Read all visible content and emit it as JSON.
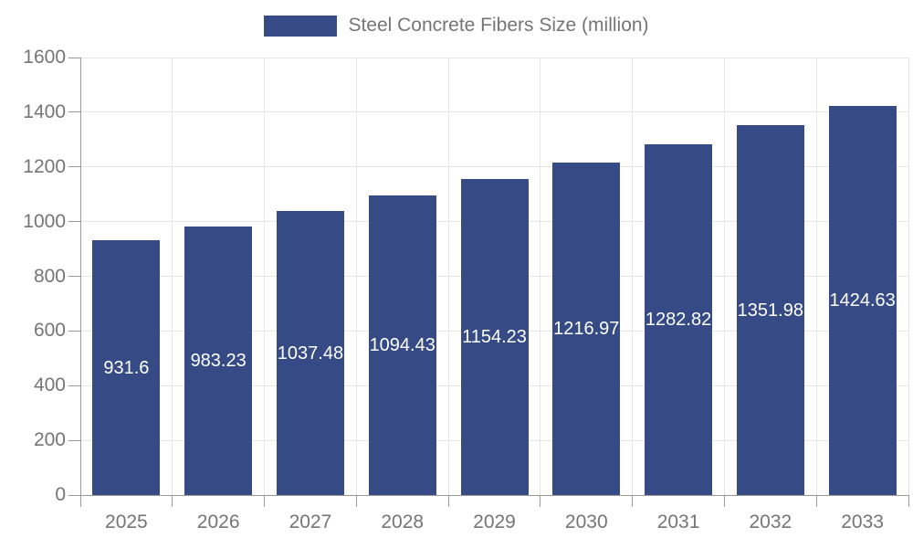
{
  "legend": {
    "label": "Steel Concrete Fibers Size (million)"
  },
  "chart_data": {
    "type": "bar",
    "title": "Steel Concrete Fibers Size (million)",
    "xlabel": "",
    "ylabel": "",
    "categories": [
      "2025",
      "2026",
      "2027",
      "2028",
      "2029",
      "2030",
      "2031",
      "2032",
      "2033"
    ],
    "values": [
      931.6,
      983.23,
      1037.48,
      1094.43,
      1154.23,
      1216.97,
      1282.82,
      1351.98,
      1424.63
    ],
    "data_labels": [
      "931.6",
      "983.23",
      "1037.48",
      "1094.43",
      "1154.23",
      "1216.97",
      "1282.82",
      "1351.98",
      "1424.63"
    ],
    "ylim": [
      0,
      1600
    ],
    "ytick_step": 200,
    "grid": true,
    "legend_position": "top",
    "colors": {
      "bar": "#364B85",
      "axis": "#999999",
      "grid": "#e6e6e6",
      "tick_text": "#757575",
      "data_label": "#ffffff"
    }
  }
}
